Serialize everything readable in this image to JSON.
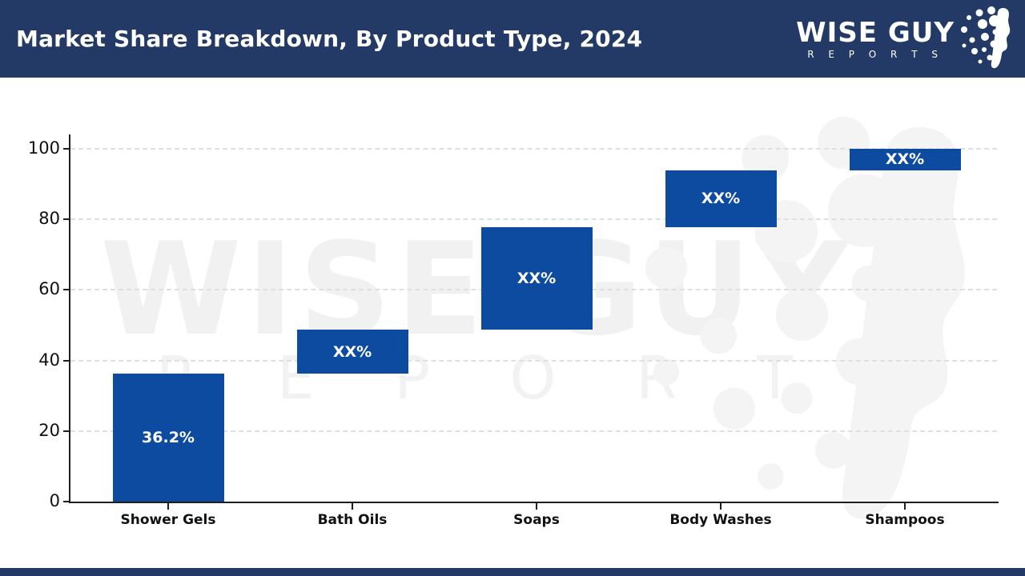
{
  "header": {
    "title": "Market Share Breakdown, By Product Type, 2024",
    "logo": {
      "line1": "WISE GUY",
      "line2": "R E P O R T S"
    }
  },
  "watermark": {
    "line1": "WISE GUY",
    "line2": "R E P O R T S"
  },
  "colors": {
    "header_background": "#243a66",
    "bar": "#0d4ba0",
    "bar_label": "#ffffff",
    "grid": "#dfdfdf",
    "axis": "#1f1f1f",
    "watermark": "#f1f1f1"
  },
  "chart_data": {
    "type": "bar",
    "subtype": "waterfall",
    "title": "Market Share Breakdown, By Product Type, 2024",
    "categories": [
      "Shower Gels",
      "Bath Oils",
      "Soaps",
      "Body Washes",
      "Shampoos"
    ],
    "segments": [
      {
        "category": "Shower Gels",
        "start": 0,
        "end": 36.2,
        "label": "36.2%"
      },
      {
        "category": "Bath Oils",
        "start": 36.2,
        "end": 48.8,
        "label": "XX%"
      },
      {
        "category": "Soaps",
        "start": 48.8,
        "end": 77.8,
        "label": "XX%"
      },
      {
        "category": "Body Washes",
        "start": 77.8,
        "end": 93.9,
        "label": "XX%"
      },
      {
        "category": "Shampoos",
        "start": 93.9,
        "end": 100,
        "label": "XX%"
      }
    ],
    "xlabel": "",
    "ylabel": "",
    "yticks": [
      0,
      20,
      40,
      60,
      80,
      100
    ],
    "ylim": [
      0,
      105
    ],
    "grid": "horizontal-dashed",
    "legend": "none"
  }
}
